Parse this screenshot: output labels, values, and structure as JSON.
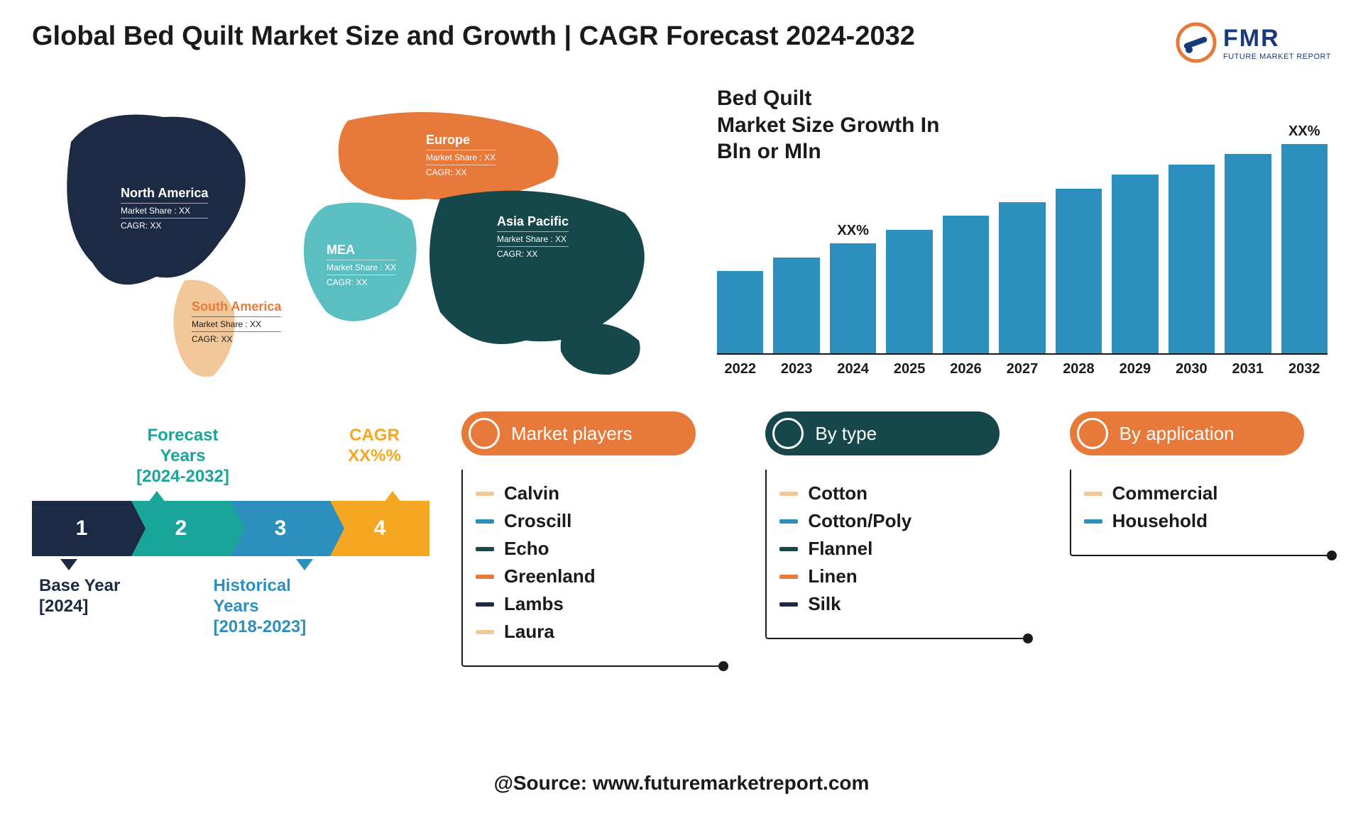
{
  "title": "Global Bed Quilt Market Size and Growth | CAGR Forecast 2024-2032",
  "logo": {
    "main": "FMR",
    "sub": "FUTURE MARKET REPORT"
  },
  "colors": {
    "navy": "#1d2a44",
    "teal_region": "#5bbfc1",
    "orange": "#e77a3a",
    "dark_teal": "#16474a",
    "tan": "#f2c89a",
    "bar": "#2d8fbd",
    "tl_teal": "#1aa59a",
    "tl_blue": "#2d8fbd",
    "tl_yellow": "#f5a623",
    "text": "#1a1a1a",
    "logo_blue": "#173a7a"
  },
  "regions": [
    {
      "name": "North America",
      "share": "Market Share : XX",
      "cagr": "CAGR: XX",
      "color": "#1d2a44"
    },
    {
      "name": "South America",
      "share": "Market Share : XX",
      "cagr": "CAGR: XX",
      "color": "#f2c89a"
    },
    {
      "name": "Europe",
      "share": "Market Share : XX",
      "cagr": "CAGR: XX",
      "color": "#e77a3a"
    },
    {
      "name": "MEA",
      "share": "Market Share : XX",
      "cagr": "CAGR: XX",
      "color": "#5bbfc1"
    },
    {
      "name": "Asia Pacific",
      "share": "Market Share : XX",
      "cagr": "CAGR: XX",
      "color": "#16474a"
    }
  ],
  "chart": {
    "title_l1": "Bed Quilt",
    "title_l2": "Market Size Growth In",
    "title_l3": "Bln or Mln",
    "type": "bar",
    "bar_color": "#2d8fbd",
    "axis_color": "#1a1a1a",
    "years": [
      "2022",
      "2023",
      "2024",
      "2025",
      "2026",
      "2027",
      "2028",
      "2029",
      "2030",
      "2031",
      "2032"
    ],
    "values": [
      120,
      140,
      160,
      180,
      200,
      220,
      240,
      260,
      275,
      290,
      305
    ],
    "ylim": [
      0,
      310
    ],
    "annot_2024": "XX%",
    "annot_2032": "XX%",
    "label_fontsize": 20
  },
  "timeline": {
    "forecast_label": "Forecast Years",
    "forecast_range": "[2024-2032]",
    "cagr_label": "CAGR",
    "cagr_value": "XX%%",
    "base_label": "Base Year",
    "base_range": "[2024]",
    "hist_label": "Historical Years",
    "hist_range": "[2018-2023]",
    "segments": [
      "1",
      "2",
      "3",
      "4"
    ],
    "seg_colors": [
      "#1d2a44",
      "#1aa59a",
      "#2d8fbd",
      "#f5a623"
    ]
  },
  "categories": {
    "players": {
      "title": "Market players",
      "pill_color": "#e77a3a",
      "items": [
        "Calvin",
        "Croscill",
        "Echo",
        "Greenland",
        "Lambs",
        "Laura"
      ],
      "item_colors": [
        "#f2c89a",
        "#2d8fbd",
        "#16474a",
        "#e77a3a",
        "#1d2a44",
        "#f2c89a"
      ]
    },
    "type": {
      "title": "By type",
      "pill_color": "#16474a",
      "items": [
        "Cotton",
        "Cotton/Poly",
        "Flannel",
        "Linen",
        "Silk"
      ],
      "item_colors": [
        "#f2c89a",
        "#2d8fbd",
        "#16474a",
        "#e77a3a",
        "#1d2a44"
      ]
    },
    "application": {
      "title": "By application",
      "pill_color": "#e77a3a",
      "items": [
        "Commercial",
        "Household"
      ],
      "item_colors": [
        "#f2c89a",
        "#2d8fbd"
      ]
    }
  },
  "source": "@Source: www.futuremarketreport.com"
}
